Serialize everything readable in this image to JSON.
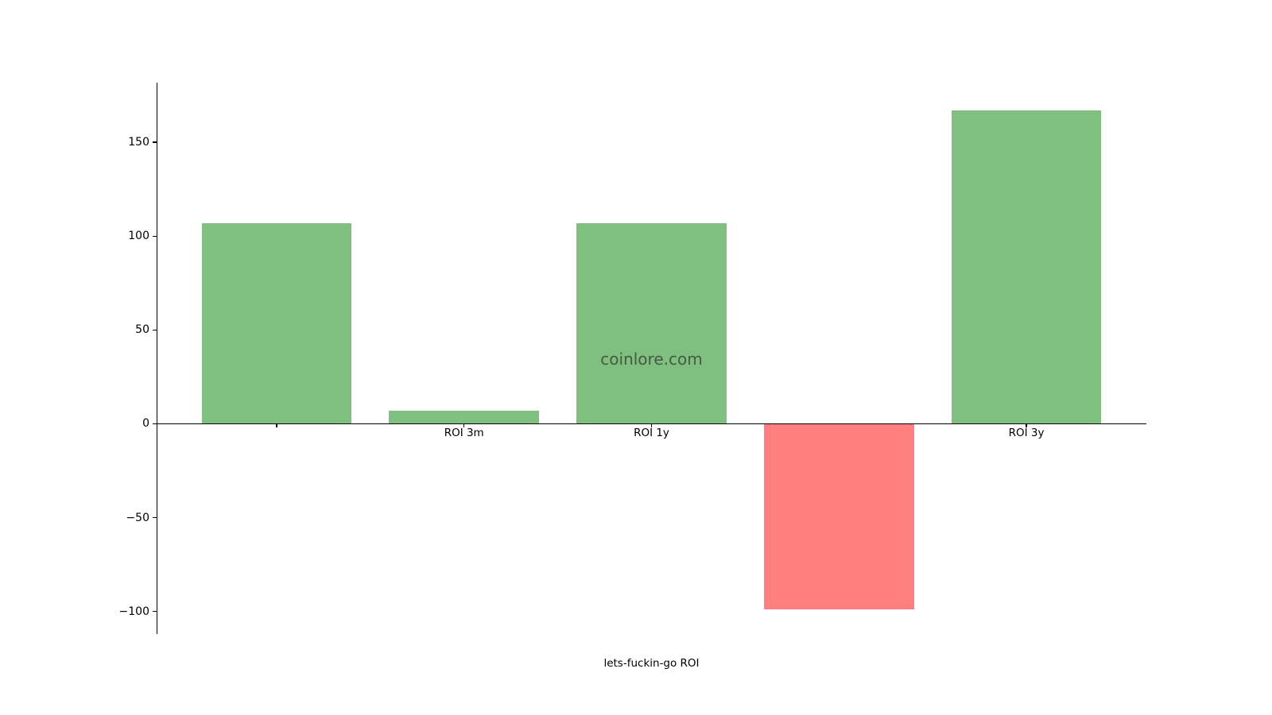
{
  "chart_data": {
    "type": "bar",
    "title": "",
    "xlabel": "lets-fuckin-go ROI",
    "ylabel": "",
    "categories": [
      "",
      "ROI 3m",
      "ROI 1y",
      "",
      "ROI 3y"
    ],
    "values": [
      107,
      7,
      107,
      -99,
      167
    ],
    "bar_colors": [
      "#7fbf7f",
      "#7fbf7f",
      "#7fbf7f",
      "#ff7f7f",
      "#7fbf7f"
    ],
    "positive_color": "#7fbf7f",
    "negative_color": "#ff7f7f",
    "ytick_values": [
      150,
      100,
      50,
      0,
      -50,
      -100
    ],
    "ytick_labels": [
      "150",
      "100",
      "50",
      "0",
      "−50",
      "−100"
    ],
    "ylim": [
      -112,
      181.8
    ],
    "grid": false,
    "legend": false,
    "watermark": "coinlore.com"
  }
}
